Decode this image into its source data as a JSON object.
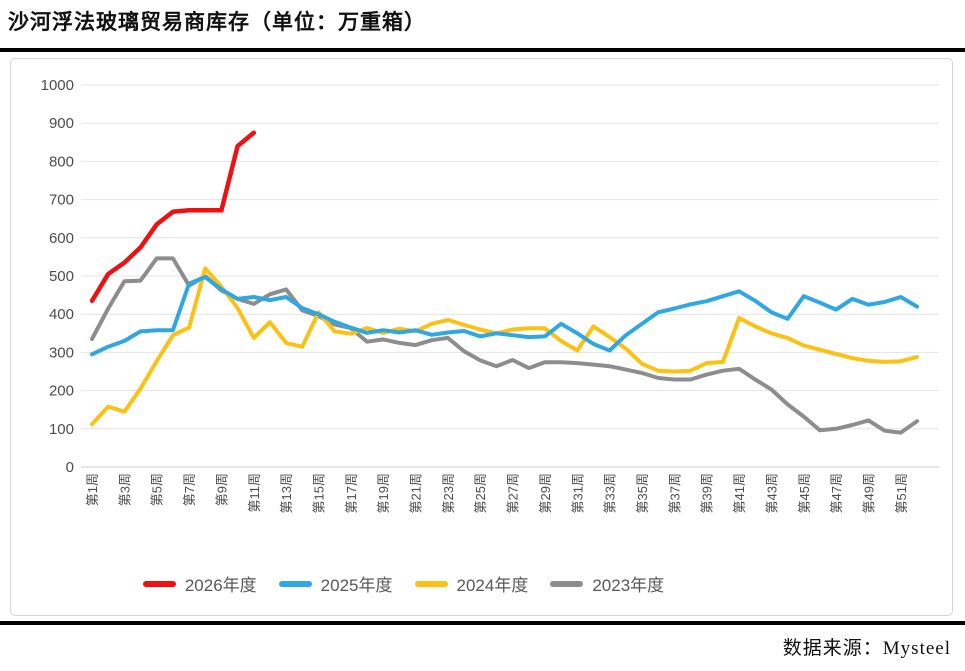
{
  "title": "沙河浮法玻璃贸易商库存（单位：万重箱）",
  "source": "数据来源：Mysteel",
  "colors": {
    "red_2026": "#ee1111",
    "blue_2025": "#2fa8e1",
    "yellow_2024": "#fdc113",
    "gray_2023": "#8d8d8d",
    "gridline": "#e4e4e4",
    "axis_label": "#4d4d4d",
    "legend_text": "#595959"
  },
  "chart_data": {
    "type": "line",
    "title": "沙河浮法玻璃贸易商库存（单位：万重箱）",
    "xlabel": "",
    "ylabel": "",
    "ylim": [
      0,
      1000
    ],
    "y_ticks": [
      0,
      100,
      200,
      300,
      400,
      500,
      600,
      700,
      800,
      900,
      1000
    ],
    "grid": true,
    "legend_position": "bottom",
    "x_weeks": 52,
    "x_tick_labels": [
      "第1周",
      "第3周",
      "第5周",
      "第7周",
      "第9周",
      "第11周",
      "第13周",
      "第15周",
      "第17周",
      "第19周",
      "第21周",
      "第23周",
      "第25周",
      "第27周",
      "第29周",
      "第31周",
      "第33周",
      "第35周",
      "第37周",
      "第39周",
      "第41周",
      "第43周",
      "第45周",
      "第47周",
      "第49周",
      "第51周"
    ],
    "series": [
      {
        "name": "2026年度",
        "color": "#ee1111",
        "values": [
          435,
          505,
          535,
          575,
          635,
          668,
          672,
          672,
          672,
          840,
          875
        ]
      },
      {
        "name": "2025年度",
        "color": "#2fa8e1",
        "values": [
          295,
          315,
          330,
          355,
          358,
          358,
          480,
          497,
          465,
          440,
          445,
          437,
          445,
          416,
          400,
          380,
          365,
          351,
          358,
          352,
          358,
          346,
          352,
          356,
          342,
          350,
          345,
          340,
          342,
          375,
          350,
          322,
          305,
          345,
          375,
          405,
          415,
          426,
          434,
          447,
          460,
          435,
          405,
          388,
          447,
          430,
          412,
          440,
          425,
          432,
          445,
          420
        ]
      },
      {
        "name": "2024年度",
        "color": "#fdc113",
        "values": [
          112,
          158,
          145,
          205,
          277,
          345,
          365,
          520,
          472,
          416,
          338,
          379,
          325,
          315,
          405,
          355,
          349,
          364,
          351,
          362,
          355,
          375,
          385,
          372,
          360,
          350,
          360,
          363,
          363,
          330,
          305,
          368,
          340,
          310,
          270,
          252,
          250,
          252,
          272,
          275,
          390,
          368,
          350,
          338,
          318,
          307,
          296,
          285,
          278,
          275,
          277,
          288
        ]
      },
      {
        "name": "2023年度",
        "color": "#8d8d8d",
        "values": [
          335,
          415,
          486,
          488,
          546,
          546,
          475,
          500,
          462,
          440,
          427,
          452,
          465,
          410,
          395,
          373,
          364,
          328,
          334,
          325,
          319,
          332,
          338,
          303,
          279,
          264,
          280,
          259,
          274,
          274,
          272,
          268,
          264,
          255,
          246,
          233,
          229,
          229,
          242,
          252,
          257,
          229,
          203,
          164,
          132,
          96,
          100,
          110,
          122,
          95,
          90,
          120
        ]
      }
    ]
  }
}
